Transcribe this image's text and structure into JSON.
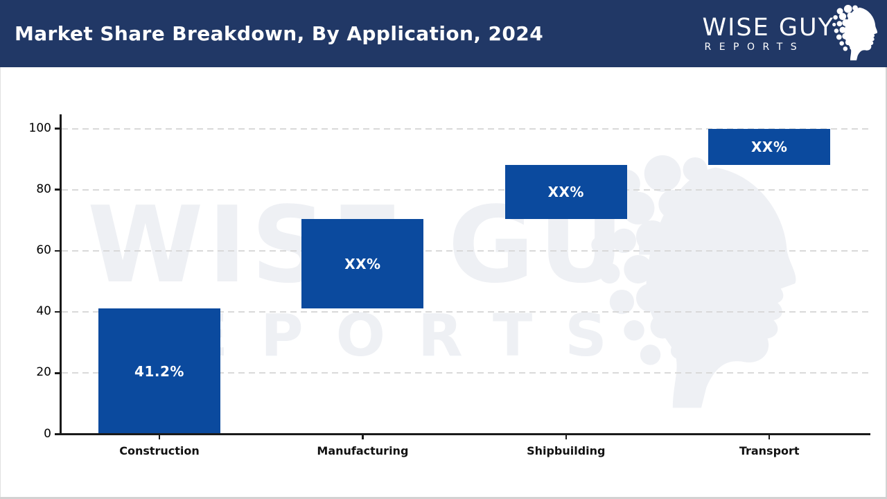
{
  "header": {
    "title": "Market Share Breakdown, By Application, 2024",
    "logo": {
      "line1": "WISE GUY",
      "line2": "REPORTS"
    }
  },
  "watermark": {
    "line1": "WISE GU·Y",
    "line2": "REPORTS"
  },
  "chart_data": {
    "type": "bar",
    "waterfall": true,
    "title": "Market Share Breakdown, By Application, 2024",
    "categories": [
      "Construction",
      "Manufacturing",
      "Shipbuilding",
      "Transport"
    ],
    "values": [
      41.2,
      29.1,
      17.7,
      12.0
    ],
    "cumulative_start": [
      0,
      41.2,
      70.3,
      88.0
    ],
    "cumulative_end": [
      41.2,
      70.3,
      88.0,
      100.0
    ],
    "bar_labels": [
      "41.2%",
      "XX%",
      "XX%",
      "XX%"
    ],
    "xlabel": "",
    "ylabel": "",
    "yticks": [
      0,
      20,
      40,
      60,
      80,
      100
    ],
    "ylim": [
      0,
      104
    ],
    "grid": "horizontal-dashed",
    "legend": "none",
    "bar_color": "#0b4a9e",
    "label_color": "#ffffff",
    "header_color": "#213866",
    "watermark_color": "#eef0f4"
  }
}
